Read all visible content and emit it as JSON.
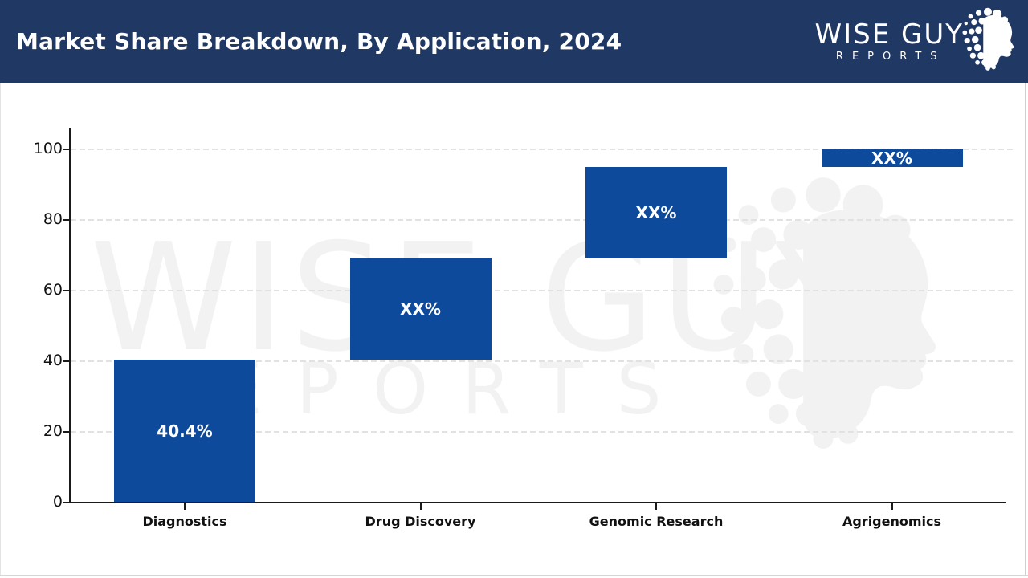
{
  "header": {
    "title": "Market Share Breakdown, By Application, 2024",
    "bg_color": "#203864",
    "logo": {
      "line1": "WISE GUY",
      "line2": "REPORTS"
    }
  },
  "watermark": {
    "line1": "WISE GUY",
    "line2": "REPORTS"
  },
  "colors": {
    "header_bg": "#203864",
    "bar": "#0d4a9c",
    "bar_label": "#ffffff",
    "grid": "#e2e2e2",
    "axis": "#1a1a1a",
    "watermark": "#f2f2f2"
  },
  "chart_data": {
    "type": "bar",
    "subtype": "waterfall",
    "title": "Market Share Breakdown, By Application, 2024",
    "categories": [
      "Diagnostics",
      "Drug Discovery",
      "Genomic Research",
      "Agrigenomics"
    ],
    "segments": [
      {
        "category": "Diagnostics",
        "start": 0,
        "end": 40.4,
        "label": "40.4%"
      },
      {
        "category": "Drug Discovery",
        "start": 40.4,
        "end": 69,
        "label": "XX%"
      },
      {
        "category": "Genomic Research",
        "start": 69,
        "end": 95,
        "label": "XX%"
      },
      {
        "category": "Agrigenomics",
        "start": 95,
        "end": 100,
        "label": "XX%"
      }
    ],
    "xlabel": "",
    "ylabel": "",
    "ylim": [
      0,
      105
    ],
    "yticks": [
      0,
      20,
      40,
      60,
      80,
      100
    ],
    "grid": "horizontal dashed",
    "legend": "none",
    "bar_color": "#0d4a9c",
    "bar_label_color": "#ffffff"
  }
}
